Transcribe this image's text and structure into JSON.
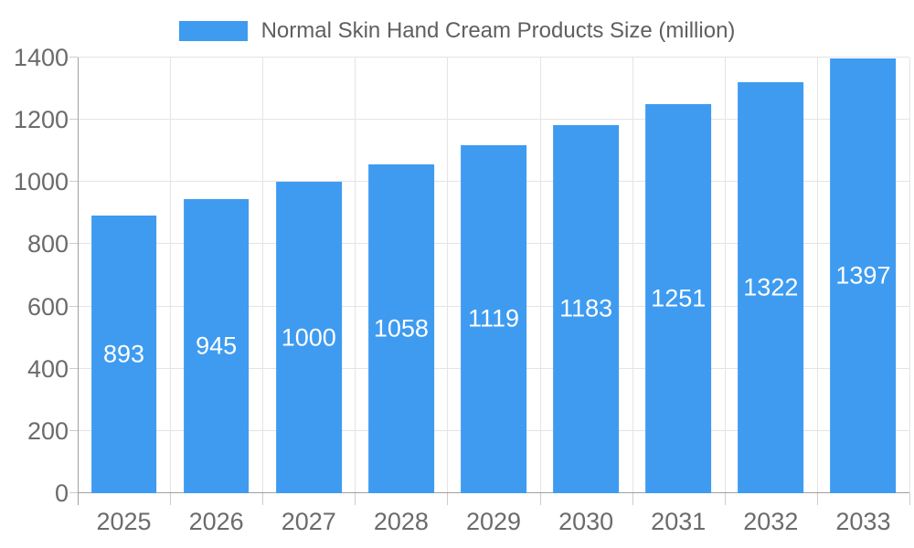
{
  "legend": {
    "label": "Normal Skin Hand Cream Products Size (million)",
    "swatch_color": "#3E9BF0"
  },
  "chart_data": {
    "type": "bar",
    "title": "Normal Skin Hand Cream Products Size (million)",
    "categories": [
      "2025",
      "2026",
      "2027",
      "2028",
      "2029",
      "2030",
      "2031",
      "2032",
      "2033"
    ],
    "values": [
      893,
      945,
      1000,
      1058,
      1119,
      1183,
      1251,
      1322,
      1397
    ],
    "value_labels": [
      "893",
      "945",
      "1000",
      "1058",
      "1119",
      "1183",
      "1251",
      "1322",
      "1397"
    ],
    "xlabel": "",
    "ylabel": "",
    "ylim": [
      0,
      1400
    ],
    "yticks": [
      0,
      200,
      400,
      600,
      800,
      1000,
      1200,
      1400
    ],
    "ytick_labels": [
      "0",
      "200",
      "400",
      "600",
      "800",
      "1000",
      "1200",
      "1400"
    ],
    "grid": true,
    "legend_position": "top-center"
  },
  "colors": {
    "bar": "#3E9BF0",
    "bar_value_text": "#ffffff",
    "grid": "#e4e4e4",
    "axis": "#a0a0a0",
    "tick": "#cccccc",
    "tick_label_text": "#6b6b6b",
    "legend_text": "#5f5f5f",
    "background": "#ffffff"
  }
}
